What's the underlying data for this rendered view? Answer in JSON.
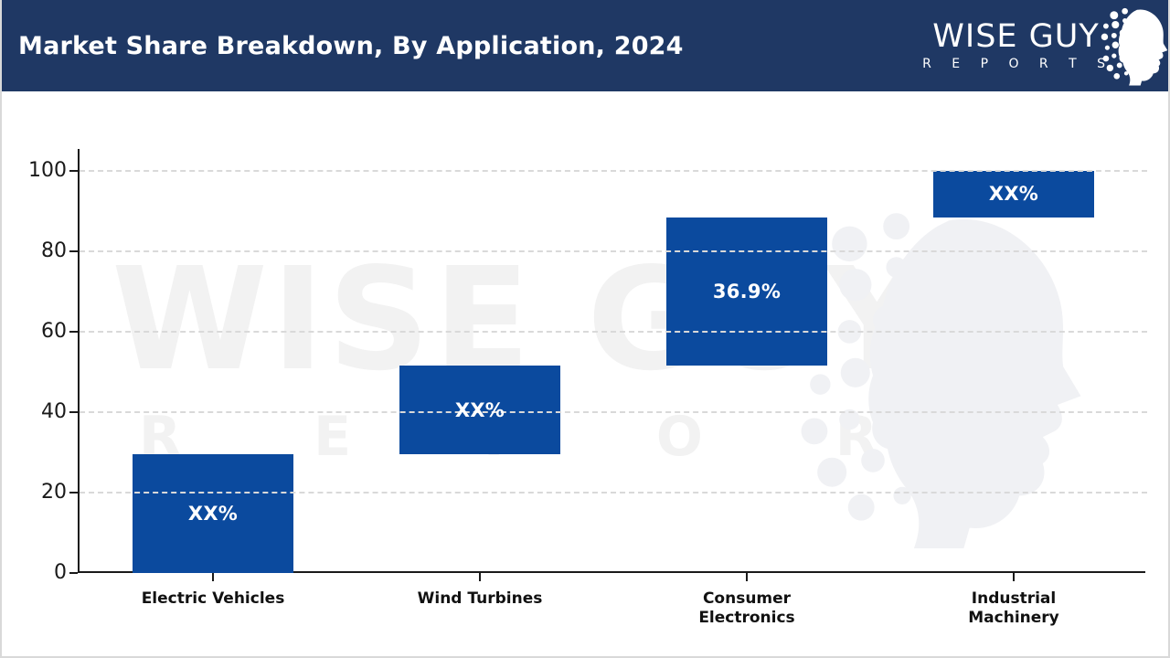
{
  "header": {
    "title": "Market Share Breakdown, By Application, 2024",
    "background_color": "#1f3864",
    "logo": {
      "primary": "WISE GUY",
      "secondary": "R E P O R T S"
    }
  },
  "watermark": {
    "line1": "WISE GUY",
    "line2": "R E P O R T S"
  },
  "chart_data": {
    "type": "bar",
    "variant": "waterfall",
    "title": "Market Share Breakdown, By Application, 2024",
    "categories": [
      "Electric Vehicles",
      "Wind Turbines",
      "Consumer\nElectronics",
      "Industrial\nMachinery"
    ],
    "segments": [
      {
        "category": "Electric Vehicles",
        "start": 0,
        "end": 29.5,
        "value_label": "XX%"
      },
      {
        "category": "Wind Turbines",
        "start": 29.5,
        "end": 51.6,
        "value_label": "XX%"
      },
      {
        "category": "Consumer Electronics",
        "start": 51.6,
        "end": 88.5,
        "value_label": "36.9%"
      },
      {
        "category": "Industrial Machinery",
        "start": 88.5,
        "end": 100,
        "value_label": "XX%"
      }
    ],
    "yticks": [
      0,
      20,
      40,
      60,
      80,
      100
    ],
    "ylim": [
      0,
      105
    ],
    "xlabel": "",
    "ylabel": "",
    "legend": "none",
    "grid": "horizontal-dashed",
    "colors": {
      "bar": "#0b4a9e",
      "value_label": "#ffffff",
      "grid": "#d9d9d9",
      "axis": "#1a1a1a",
      "tick_label": "#1a1a1a"
    }
  }
}
